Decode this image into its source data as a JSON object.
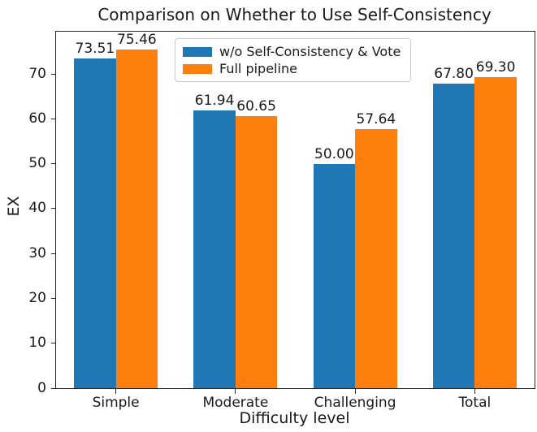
{
  "chart_data": {
    "type": "bar",
    "title": "Comparison on Whether to Use Self-Consistency",
    "xlabel": "Difficulty level",
    "ylabel": "EX",
    "categories": [
      "Simple",
      "Moderate",
      "Challenging",
      "Total"
    ],
    "series": [
      {
        "name": "w/o Self-Consistency & Vote",
        "color": "#1f77b4",
        "values": [
          73.51,
          61.94,
          50.0,
          67.8
        ]
      },
      {
        "name": "Full pipeline",
        "color": "#ff7f0e",
        "values": [
          75.46,
          60.65,
          57.64,
          69.3
        ]
      }
    ],
    "value_label_decimals": 2,
    "ylim": [
      0,
      79.4
    ],
    "yticks": [
      0,
      10,
      20,
      30,
      40,
      50,
      60,
      70
    ],
    "grid": false,
    "legend_position": "upper left inside plot",
    "bar_group_width_fraction": 0.7
  }
}
